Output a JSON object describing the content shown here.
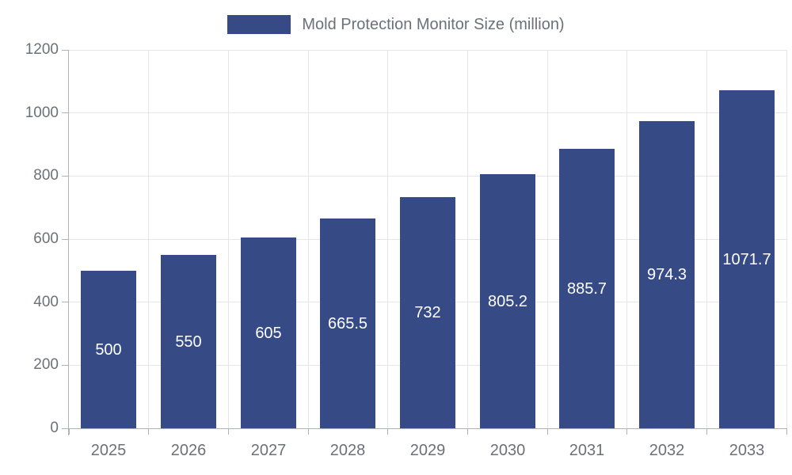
{
  "legend": {
    "label": "Mold Protection Monitor Size (million)"
  },
  "chart_data": {
    "type": "bar",
    "title": "Mold Protection Monitor Size (million)",
    "categories": [
      "2025",
      "2026",
      "2027",
      "2028",
      "2029",
      "2030",
      "2031",
      "2032",
      "2033"
    ],
    "values": [
      500,
      550,
      605,
      665.5,
      732,
      805.2,
      885.7,
      974.3,
      1071.7
    ],
    "xlabel": "",
    "ylabel": "",
    "ylim": [
      0,
      1200
    ],
    "yticks": [
      0,
      200,
      400,
      600,
      800,
      1000,
      1200
    ],
    "grid": true,
    "legend_position": "top",
    "colors": {
      "bar": "#364A86",
      "value_label": "#FFFFFF",
      "axis_text": "#6E7079",
      "grid_line": "#E5E6EA",
      "axis_line": "#AEB1B8",
      "background": "#FFFFFF"
    }
  }
}
